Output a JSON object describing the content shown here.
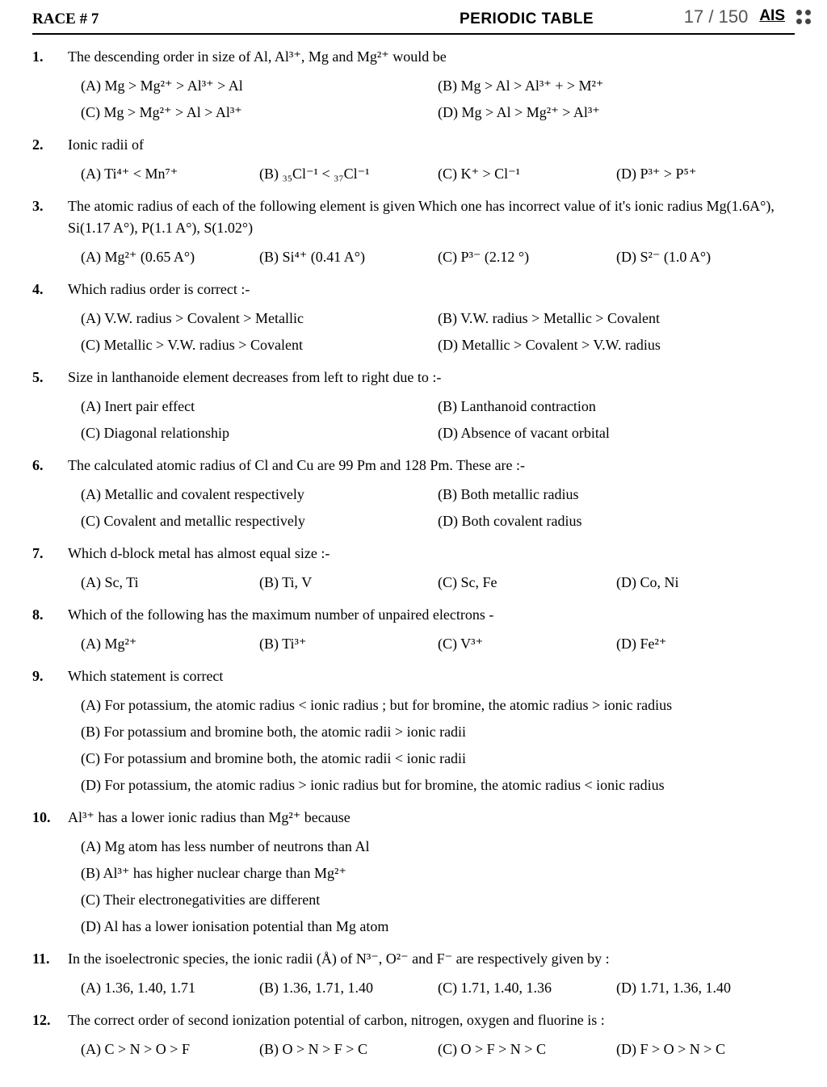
{
  "header": {
    "race": "RACE # 7",
    "title": "PERIODIC TABLE",
    "counter": "17 / 150",
    "ais": "AIS"
  },
  "questions": [
    {
      "num": "1.",
      "text": "The descending order in size of Al, Al³⁺, Mg and Mg²⁺ would be",
      "layout": "2col",
      "options": [
        "(A) Mg > Mg²⁺ > Al³⁺ > Al",
        "(B) Mg > Al > Al³⁺ + > M²⁺",
        "(C) Mg > Mg²⁺ > Al > Al³⁺",
        "(D) Mg > Al > Mg²⁺ > Al³⁺"
      ]
    },
    {
      "num": "2.",
      "text": "Ionic radii of",
      "layout": "4col",
      "options": [
        "(A) Ti⁴⁺ < Mn⁷⁺",
        "(B) ₃₅Cl⁻¹ < ₃₇Cl⁻¹",
        "(C) K⁺ > Cl⁻¹",
        "(D) P³⁺ > P⁵⁺"
      ]
    },
    {
      "num": "3.",
      "text": "The atomic radius of each of the following element is given Which one has incorrect value of it's ionic radius Mg(1.6A°), Si(1.17 A°), P(1.1 A°), S(1.02°)",
      "layout": "4col",
      "options": [
        "(A) Mg²⁺ (0.65 A°)",
        "(B) Si⁴⁺ (0.41 A°)",
        "(C) P³⁻ (2.12 °)",
        "(D) S²⁻ (1.0 A°)"
      ]
    },
    {
      "num": "4.",
      "text": "Which radius order is correct :-",
      "layout": "2col",
      "options": [
        "(A) V.W. radius > Covalent > Metallic",
        "(B) V.W. radius > Metallic > Covalent",
        "(C) Metallic > V.W. radius > Covalent",
        "(D) Metallic > Covalent > V.W. radius"
      ]
    },
    {
      "num": "5.",
      "text": "Size in lanthanoide element decreases from left to right due to :-",
      "layout": "2col",
      "options": [
        "(A) Inert pair effect",
        "(B) Lanthanoid contraction",
        "(C) Diagonal relationship",
        "(D) Absence of vacant orbital"
      ]
    },
    {
      "num": "6.",
      "text": "The calculated atomic radius of Cl and Cu are 99 Pm and 128 Pm. These are :-",
      "layout": "2col",
      "options": [
        "(A) Metallic and covalent respectively",
        "(B) Both metallic radius",
        "(C) Covalent and metallic respectively",
        "(D) Both covalent radius"
      ]
    },
    {
      "num": "7.",
      "text": "Which d-block metal has almost equal size :-",
      "layout": "4col",
      "options": [
        "(A) Sc, Ti",
        "(B) Ti, V",
        "(C) Sc, Fe",
        "(D) Co, Ni"
      ]
    },
    {
      "num": "8.",
      "text": "Which of the following has the maximum number of unpaired electrons -",
      "layout": "4col",
      "options": [
        "(A) Mg²⁺",
        "(B) Ti³⁺",
        "(C) V³⁺",
        "(D) Fe²⁺"
      ]
    },
    {
      "num": "9.",
      "text": "Which statement is correct",
      "layout": "1col",
      "options": [
        "(A) For potassium, the atomic radius < ionic radius ; but for bromine, the atomic radius > ionic radius",
        "(B) For potassium and bromine both, the atomic radii > ionic radii",
        "(C) For potassium and bromine both, the atomic radii < ionic radii",
        "(D) For potassium, the atomic radius > ionic radius but for bromine, the atomic radius < ionic radius"
      ]
    },
    {
      "num": "10.",
      "text": "Al³⁺ has a lower ionic radius than Mg²⁺ because",
      "layout": "1col",
      "options": [
        "(A) Mg atom has less number of neutrons than Al",
        "(B) Al³⁺ has higher nuclear charge than Mg²⁺",
        "(C) Their electronegativities are different",
        "(D) Al has a lower ionisation potential than Mg atom"
      ]
    },
    {
      "num": "11.",
      "text": "In the isoelectronic species, the ionic radii (Å) of N³⁻, O²⁻ and F⁻ are respectively given by :",
      "layout": "4col",
      "options": [
        "(A) 1.36, 1.40, 1.71",
        "(B) 1.36, 1.71, 1.40",
        "(C) 1.71, 1.40, 1.36",
        "(D) 1.71, 1.36, 1.40"
      ]
    },
    {
      "num": "12.",
      "text": "The correct order of second ionization potential of carbon, nitrogen, oxygen and fluorine is :",
      "layout": "4col",
      "options": [
        "(A) C > N > O > F",
        "(B) O > N > F > C",
        "(C) O > F > N > C",
        "(D) F > O > N > C"
      ]
    }
  ]
}
